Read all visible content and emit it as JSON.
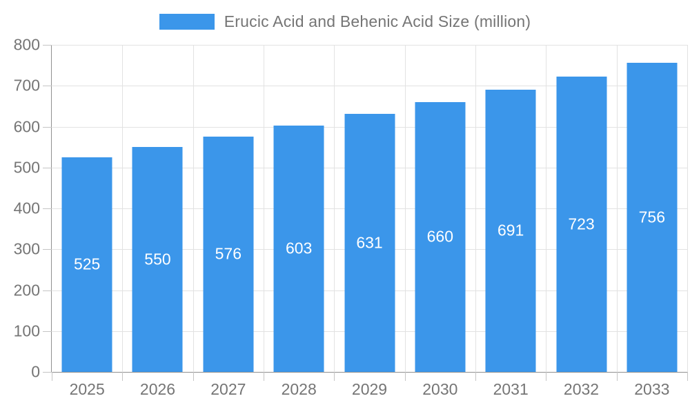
{
  "legend": {
    "label": "Erucic Acid and Behenic Acid Size (million)"
  },
  "colors": {
    "bar": "#3B96EA",
    "text": "#757575",
    "grid": "#E2E2E2",
    "axis": "#8F8F8F",
    "tick": "#C4C4C4",
    "bar_label": "#FFFFFF",
    "background": "#FFFFFF"
  },
  "chart_data": {
    "type": "bar",
    "title": "Erucic Acid and Behenic Acid Size (million)",
    "categories": [
      "2025",
      "2026",
      "2027",
      "2028",
      "2029",
      "2030",
      "2031",
      "2032",
      "2033"
    ],
    "values": [
      525,
      550,
      576,
      603,
      631,
      660,
      691,
      723,
      756
    ],
    "xlabel": "",
    "ylabel": "",
    "ylim": [
      0,
      800
    ],
    "y_ticks": [
      0,
      100,
      200,
      300,
      400,
      500,
      600,
      700,
      800
    ],
    "grid": true,
    "legend_position": "top-center",
    "bar_label_position": "inside-center"
  }
}
